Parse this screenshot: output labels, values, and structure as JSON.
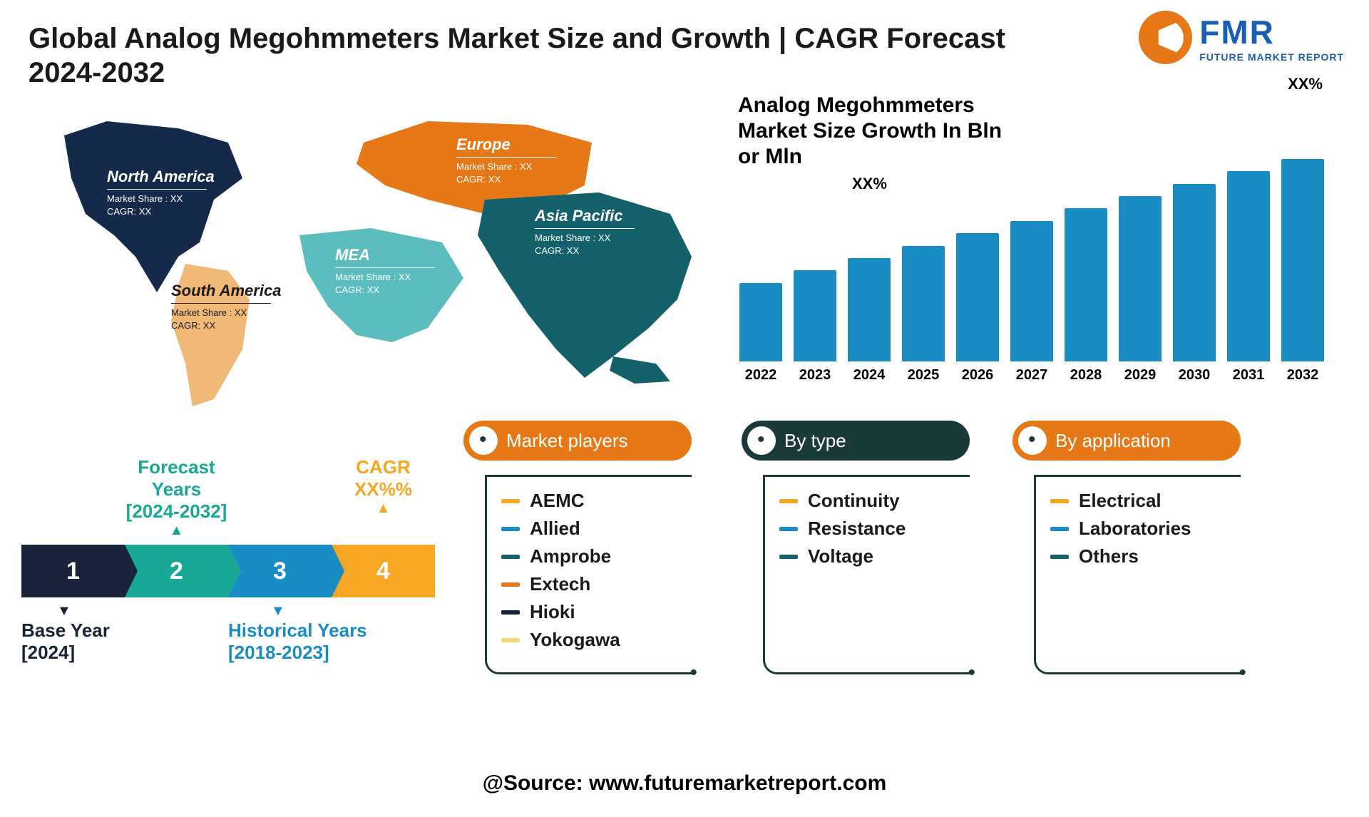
{
  "title": "Global Analog Megohmmeters  Market Size and Growth | CAGR Forecast 2024-2032",
  "logo": {
    "fmr": "FMR",
    "sub": "FUTURE MARKET REPORT",
    "icon_color": "#e67817",
    "text_color": "#1a5fb4"
  },
  "source": "@Source: www.futuremarketreport.com",
  "map": {
    "regions": [
      {
        "id": "na",
        "name": "North America",
        "share": "Market Share : XX",
        "cagr": "CAGR: XX",
        "color": "#152a4a"
      },
      {
        "id": "sa",
        "name": "South America",
        "share": "Market Share : XX",
        "cagr": "CAGR: XX",
        "color": "#f0b978",
        "text_color": "#1a1a1a"
      },
      {
        "id": "eu",
        "name": "Europe",
        "share": "Market Share : XX",
        "cagr": "CAGR: XX",
        "color": "#e67817"
      },
      {
        "id": "mea",
        "name": "MEA",
        "share": "Market Share : XX",
        "cagr": "CAGR: XX",
        "color": "#5cbdbf"
      },
      {
        "id": "ap",
        "name": "Asia Pacific",
        "share": "Market Share : XX",
        "cagr": "CAGR: XX",
        "color": "#14616b"
      }
    ]
  },
  "chart": {
    "title": "Analog Megohmmeters Market Size Growth In Bln or Mln",
    "bar_color": "#1a8cc4",
    "years": [
      "2022",
      "2023",
      "2024",
      "2025",
      "2026",
      "2027",
      "2028",
      "2029",
      "2030",
      "2031",
      "2032"
    ],
    "heights_pct": [
      38,
      44,
      50,
      56,
      62,
      68,
      74,
      80,
      86,
      92,
      98
    ],
    "annot_2024": "XX%",
    "annot_2032": "XX%",
    "label_fontsize": 20,
    "title_fontsize": 30
  },
  "timeline": {
    "top": [
      {
        "label": "Forecast Years",
        "sub": "[2024-2032]",
        "color": "#1aa896"
      },
      {
        "label": "CAGR",
        "sub": "XX%%",
        "color": "#f5a623"
      }
    ],
    "segments": [
      {
        "num": "1",
        "color": "#1a2438"
      },
      {
        "num": "2",
        "color": "#1aa896"
      },
      {
        "num": "3",
        "color": "#1a8cc4"
      },
      {
        "num": "4",
        "color": "#f5a623"
      }
    ],
    "bottom": [
      {
        "label": "Base Year",
        "sub": "[2024]",
        "color": "#1a2438"
      },
      {
        "label": "Historical Years",
        "sub": "[2018-2023]",
        "color": "#1a8cc4"
      }
    ]
  },
  "categories": [
    {
      "header": "Market players",
      "header_color": "#e67817",
      "items": [
        {
          "text": "AEMC",
          "bullet_color": "#f5a623"
        },
        {
          "text": "Allied",
          "bullet_color": "#1a8cc4"
        },
        {
          "text": "Amprobe",
          "bullet_color": "#14616b"
        },
        {
          "text": "Extech",
          "bullet_color": "#e67817"
        },
        {
          "text": "Hioki",
          "bullet_color": "#1a2438"
        },
        {
          "text": "Yokogawa",
          "bullet_color": "#f0d978"
        }
      ]
    },
    {
      "header": "By type",
      "header_color": "#1a3a3a",
      "items": [
        {
          "text": "Continuity",
          "bullet_color": "#f5a623"
        },
        {
          "text": "Resistance",
          "bullet_color": "#1a8cc4"
        },
        {
          "text": "Voltage",
          "bullet_color": "#14616b"
        }
      ]
    },
    {
      "header": "By application",
      "header_color": "#e67817",
      "items": [
        {
          "text": "Electrical",
          "bullet_color": "#f5a623"
        },
        {
          "text": "Laboratories",
          "bullet_color": "#1a8cc4"
        },
        {
          "text": "Others",
          "bullet_color": "#14616b"
        }
      ]
    }
  ]
}
